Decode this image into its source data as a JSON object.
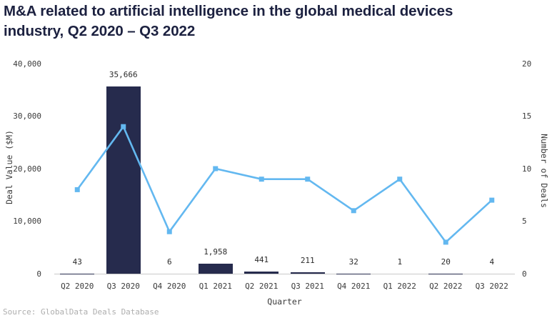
{
  "title": "M&A related to artificial intelligence in the global medical devices industry, Q2 2020 – Q3 2022",
  "source": "Source: GlobalData Deals Database",
  "colors": {
    "bar": "#262b4d",
    "line": "#63b8f0",
    "title": "#1c2140",
    "axis_line": "#c9c9c9",
    "tick_text": "#3a3a3a",
    "source_text": "#aeaeae"
  },
  "chart_data": {
    "type": "bar",
    "subtype": "combo-bar-line-dual-axis",
    "categories": [
      "Q2 2020",
      "Q3 2020",
      "Q4 2020",
      "Q1 2021",
      "Q2 2021",
      "Q3 2021",
      "Q4 2021",
      "Q1 2022",
      "Q2 2022",
      "Q3 2022"
    ],
    "series": [
      {
        "name": "Deal Value ($M)",
        "type": "bar",
        "axis": "left",
        "color": "#262b4d",
        "values": [
          43,
          35666,
          6,
          1958,
          441,
          211,
          32,
          1,
          20,
          4
        ],
        "labels": [
          "43",
          "35,666",
          "6",
          "1,958",
          "441",
          "211",
          "32",
          "1",
          "20",
          "4"
        ]
      },
      {
        "name": "Number of Deals",
        "type": "line",
        "axis": "right",
        "color": "#63b8f0",
        "marker": "square",
        "values": [
          8,
          14,
          4,
          10,
          9,
          9,
          6,
          9,
          3,
          7
        ]
      }
    ],
    "title": "M&A related to artificial intelligence in the global medical devices industry, Q2 2020 – Q3 2022",
    "xlabel": "Quarter",
    "ylabel_left": "Deal Value ($M)",
    "ylabel_right": "Number of Deals",
    "yleft_lim": [
      0,
      40000
    ],
    "yleft_ticks": [
      "0",
      "10,000",
      "20,000",
      "30,000",
      "40,000"
    ],
    "yright_lim": [
      0,
      20
    ],
    "yright_ticks": [
      "0",
      "5",
      "10",
      "15",
      "20"
    ],
    "grid": false,
    "legend": false
  }
}
